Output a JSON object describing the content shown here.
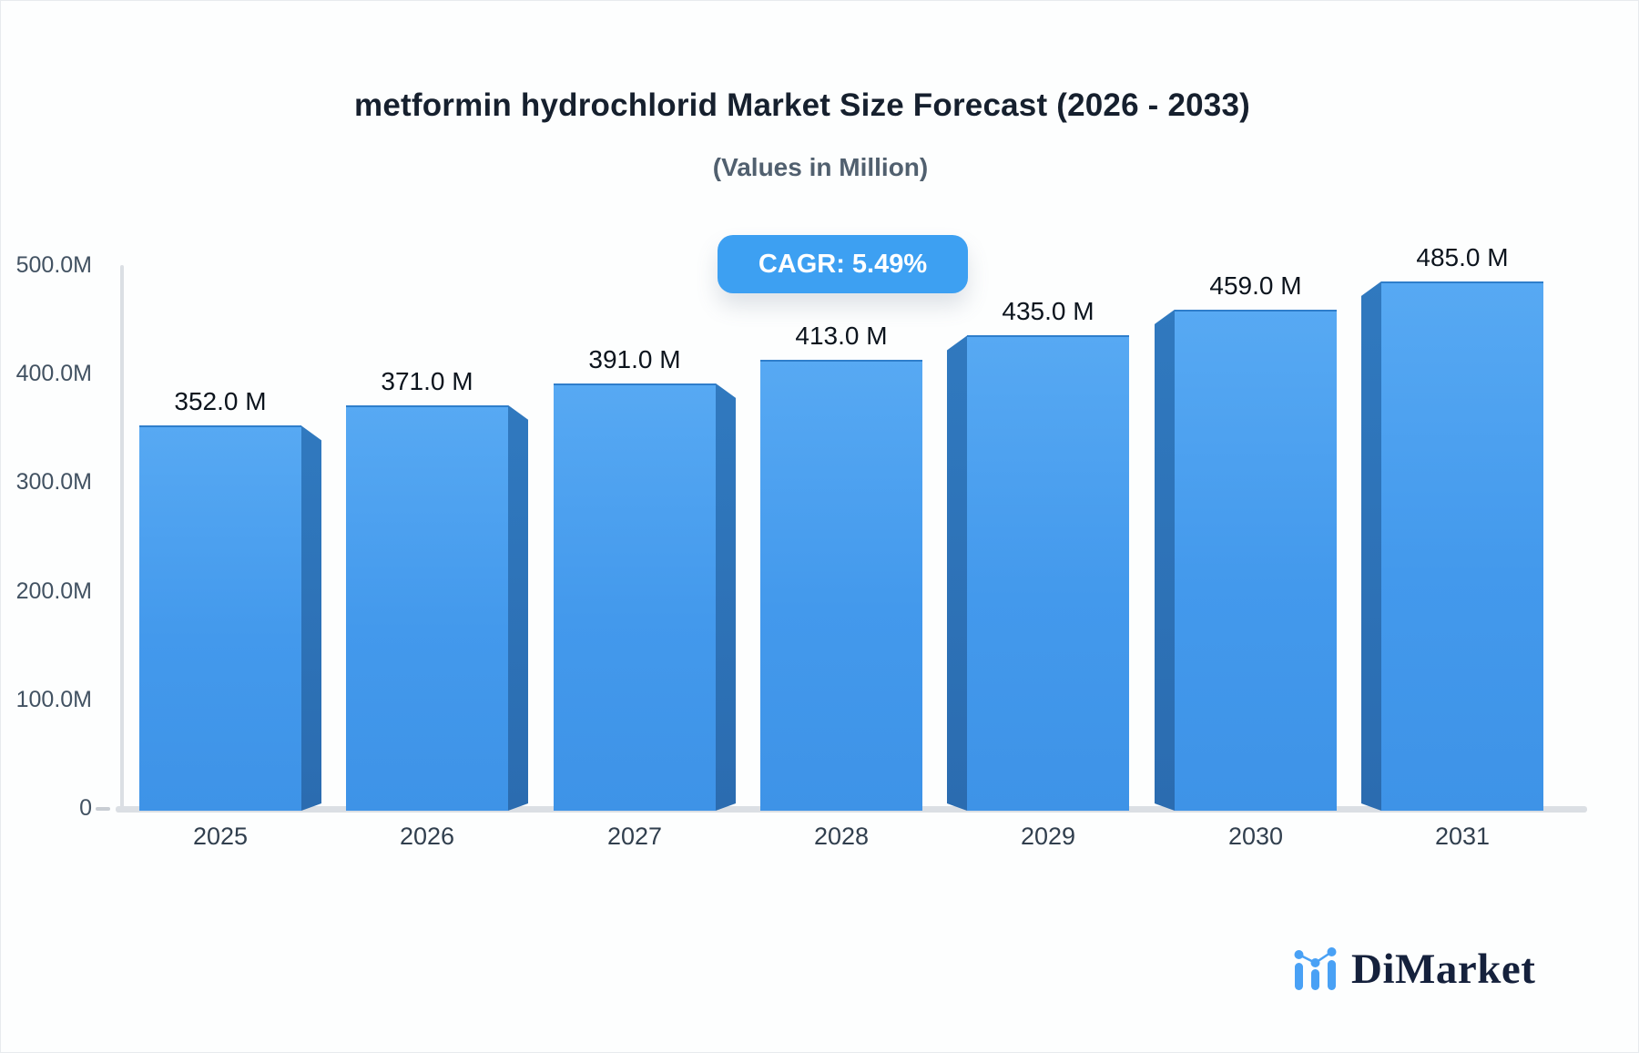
{
  "header": {
    "title": "metformin hydrochlorid Market Size Forecast (2026 - 2033)",
    "subtitle": "(Values in Million)",
    "cagr_badge": "CAGR: 5.49%"
  },
  "chart_data": {
    "type": "bar",
    "title": "metformin hydrochlorid Market Size Forecast (2026 - 2033)",
    "subtitle": "(Values in Million)",
    "unit": "Million",
    "cagr_annotation": "CAGR: 5.49%",
    "categories": [
      "2025",
      "2026",
      "2027",
      "2028",
      "2029",
      "2030",
      "2031"
    ],
    "values": [
      352.0,
      371.0,
      391.0,
      413.0,
      435.0,
      459.0,
      485.0
    ],
    "value_labels": [
      "352.0 M",
      "371.0 M",
      "391.0 M",
      "413.0 M",
      "435.0 M",
      "459.0 M",
      "485.0 M"
    ],
    "y_axis": {
      "range": [
        0,
        500
      ],
      "ticks": [
        {
          "value": 500,
          "label": "500.0M"
        },
        {
          "value": 400,
          "label": "400.0M"
        },
        {
          "value": 300,
          "label": "300.0M"
        },
        {
          "value": 200,
          "label": "200.0M"
        },
        {
          "value": 100,
          "label": "100.0M"
        },
        {
          "value": 0,
          "label": "0"
        }
      ]
    },
    "grid": false,
    "legend": false,
    "bar_style": "3d"
  },
  "branding": {
    "name": "DiMarket",
    "icon": "bar-chart-logo-icon"
  },
  "colors": {
    "bar_face_top": "#57a9f3",
    "bar_face_bottom": "#3e93e7",
    "bar_side": "#2b6cb0",
    "badge": "#3da0f2",
    "axis": "#dbdfe4",
    "title_text": "#16202e",
    "subtitle_text": "#51606f",
    "value_text": "#0c141d",
    "tick_text": "#425262",
    "year_text": "#313f4e",
    "logo_text": "#15213c",
    "logo_blue": "#49a1f5"
  }
}
